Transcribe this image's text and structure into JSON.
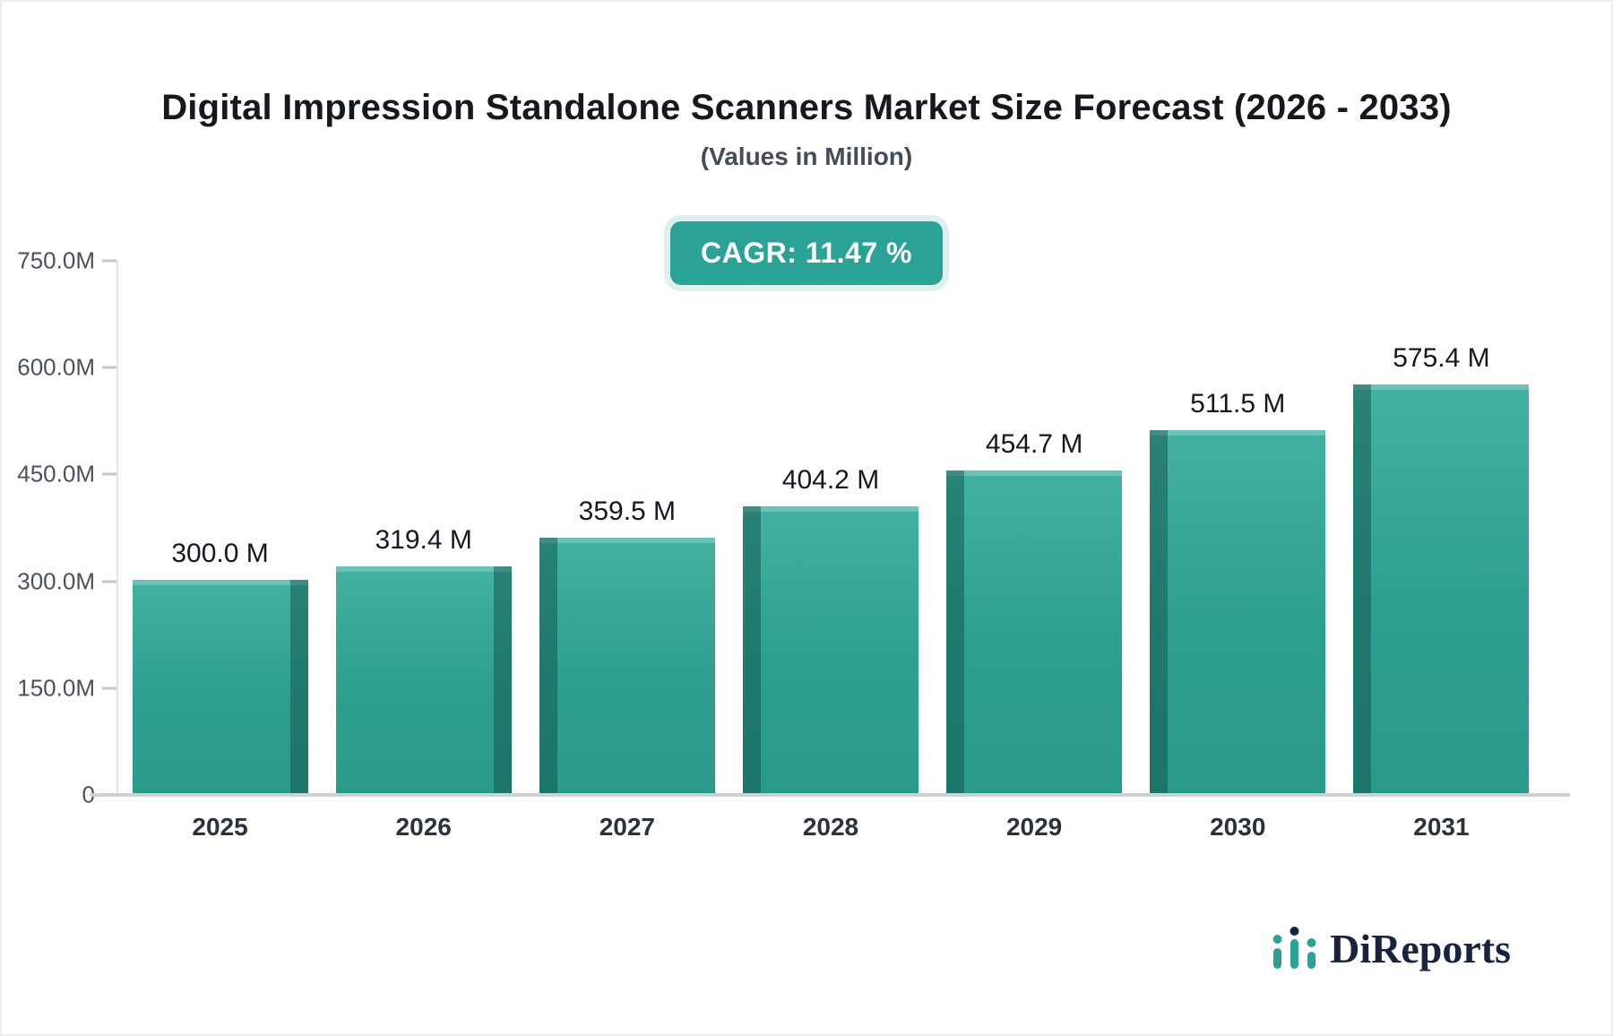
{
  "header": {
    "title": "Digital Impression Standalone Scanners Market Size Forecast (2026 - 2033)",
    "subtitle": "(Values in Million)",
    "cagr_badge": "CAGR: 11.47 %"
  },
  "chart_data": {
    "type": "bar",
    "title": "Digital Impression Standalone Scanners Market Size Forecast (2026 - 2033)",
    "subtitle": "(Values in Million)",
    "categories": [
      "2025",
      "2026",
      "2027",
      "2028",
      "2029",
      "2030",
      "2031"
    ],
    "values": [
      300.0,
      319.4,
      359.5,
      404.2,
      454.7,
      511.5,
      575.4
    ],
    "value_labels": [
      "300.0 M",
      "319.4 M",
      "359.5 M",
      "404.2 M",
      "454.7 M",
      "511.5 M",
      "575.4 M"
    ],
    "y_ticks": [
      "750.0M",
      "600.0M",
      "450.0M",
      "300.0M",
      "150.0M",
      "0"
    ],
    "y_tick_values": [
      750,
      600,
      450,
      300,
      150,
      0
    ],
    "ylim": [
      0,
      750
    ],
    "unit": "Million",
    "xlabel": "",
    "ylabel": "",
    "grid": false,
    "legend": "none",
    "colors": {
      "bar": "#2aa295",
      "bar_shade": "#1d7a70",
      "badge": "#2aa295",
      "axis": "#ccd1d5",
      "label_text": "#14181f"
    }
  },
  "branding": {
    "logo_text": "DiReports",
    "logo_icon": "mini-bar-chart-icon",
    "logo_text_color": "#18243f",
    "logo_icon_color": "#2aa295"
  }
}
